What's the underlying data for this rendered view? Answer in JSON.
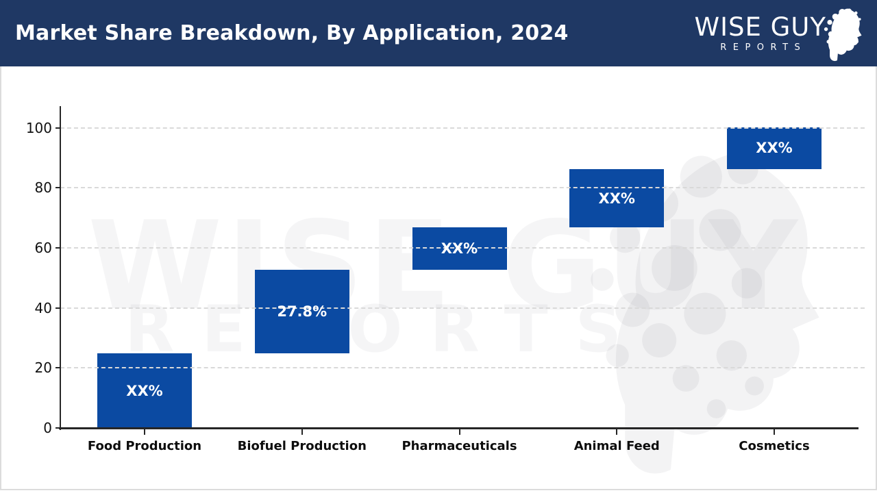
{
  "header": {
    "title": "Market Share Breakdown, By Application, 2024",
    "logo": {
      "line1": "WISE GUY",
      "line2": "REPORTS"
    }
  },
  "watermark": {
    "line1": "WISE GUY",
    "line2": "REPORTS"
  },
  "colors": {
    "header_bg": "#1f3864",
    "bar": "#0b4aa2",
    "axis": "#262626",
    "grid": "#d9d9d9",
    "tick_label": "#111111",
    "category_label": "#0d0d0d",
    "bar_label": "#ffffff"
  },
  "chart_data": {
    "type": "bar",
    "subtype": "waterfall",
    "title": "Market Share Breakdown, By Application, 2024",
    "categories": [
      "Food Production",
      "Biofuel Production",
      "Pharmaceuticals",
      "Animal Feed",
      "Cosmetics"
    ],
    "bars": [
      {
        "category": "Food Production",
        "start": 0,
        "end": 24.8,
        "label": "XX%"
      },
      {
        "category": "Biofuel Production",
        "start": 24.8,
        "end": 52.6,
        "label": "27.8%"
      },
      {
        "category": "Pharmaceuticals",
        "start": 52.6,
        "end": 66.8,
        "label": "XX%"
      },
      {
        "category": "Animal Feed",
        "start": 66.8,
        "end": 86.2,
        "label": "XX%"
      },
      {
        "category": "Cosmetics",
        "start": 86.2,
        "end": 100.2,
        "label": "XX%"
      }
    ],
    "values_unit": "%",
    "xlabel": "",
    "ylabel": "",
    "yticks": [
      0,
      20,
      40,
      60,
      80,
      100
    ],
    "ylim": [
      0,
      107.5
    ],
    "grid": "horizontal-dashed",
    "legend": "none"
  }
}
